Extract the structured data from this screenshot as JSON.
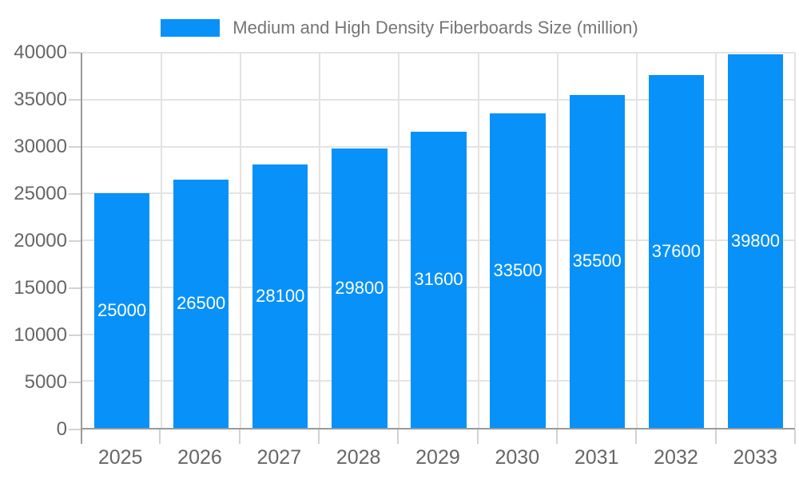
{
  "page": {
    "background": "#ffffff"
  },
  "legend": {
    "position": "top",
    "swatch_color": "#0891f8"
  },
  "chart_data": {
    "type": "bar",
    "title": "Medium and High Density Fiberboards Size (million)",
    "categories": [
      "2025",
      "2026",
      "2027",
      "2028",
      "2029",
      "2030",
      "2031",
      "2032",
      "2033"
    ],
    "values": [
      25000,
      26500,
      28100,
      29800,
      31600,
      33500,
      35500,
      37600,
      39800
    ],
    "value_labels": [
      "25000",
      "26500",
      "28100",
      "29800",
      "31600",
      "33500",
      "35500",
      "37600",
      "39800"
    ],
    "xlabel": "",
    "ylabel": "",
    "ylim": [
      0,
      40000
    ],
    "yticks": [
      0,
      5000,
      10000,
      15000,
      20000,
      25000,
      30000,
      35000,
      40000
    ],
    "grid": true,
    "legend_position": "top",
    "bar_color": "#0891f8",
    "value_label_color": "#ffffff",
    "grid_color": "#e3e3e3",
    "axis_color": "#9a9a9a",
    "tick_mark_color": "#d2d2d2",
    "tick_label_color": "#666666",
    "title_color": "#757575"
  }
}
